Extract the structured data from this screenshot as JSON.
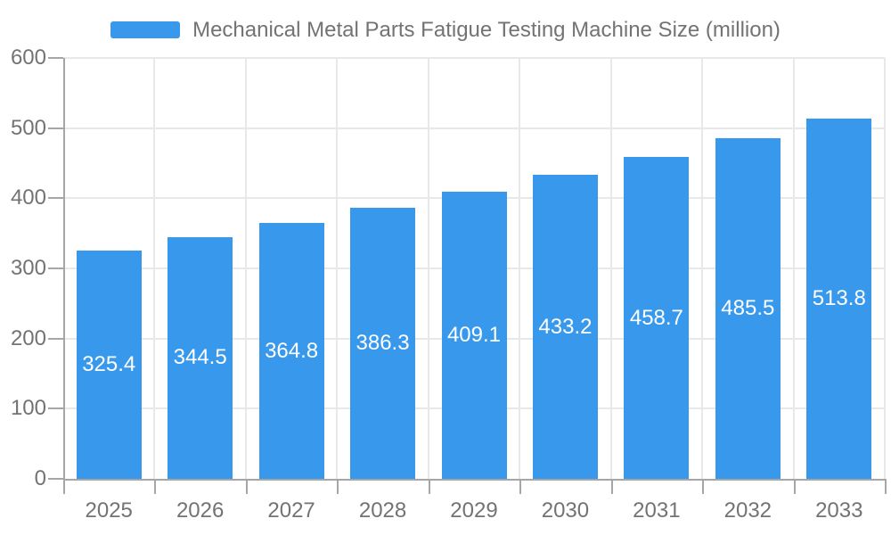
{
  "chart_data": {
    "type": "bar",
    "title": "Mechanical Metal Parts Fatigue Testing Machine Size (million)",
    "categories": [
      "2025",
      "2026",
      "2027",
      "2028",
      "2029",
      "2030",
      "2031",
      "2032",
      "2033"
    ],
    "series": [
      {
        "name": "Mechanical Metal Parts Fatigue Testing Machine Size (million)",
        "values": [
          325.4,
          344.5,
          364.8,
          386.3,
          409.1,
          433.2,
          458.7,
          485.5,
          513.8
        ]
      }
    ],
    "value_labels": [
      "325.4",
      "344.5",
      "364.8",
      "386.3",
      "409.1",
      "433.2",
      "458.7",
      "485.5",
      "513.8"
    ],
    "xlabel": "",
    "ylabel": "",
    "ylim": [
      0,
      600
    ],
    "yticks": [
      0,
      100,
      200,
      300,
      400,
      500,
      600
    ],
    "grid": true,
    "legend_position": "top",
    "value_label_position": "inside-center",
    "colors": {
      "bar": "#3899EC",
      "bar_label": "#FFFFFF",
      "axis_line": "#A6A6A6",
      "gridline": "#E8E8E8",
      "tick_text": "#737373",
      "title_text": "#737373",
      "background": "#FFFFFF"
    }
  }
}
